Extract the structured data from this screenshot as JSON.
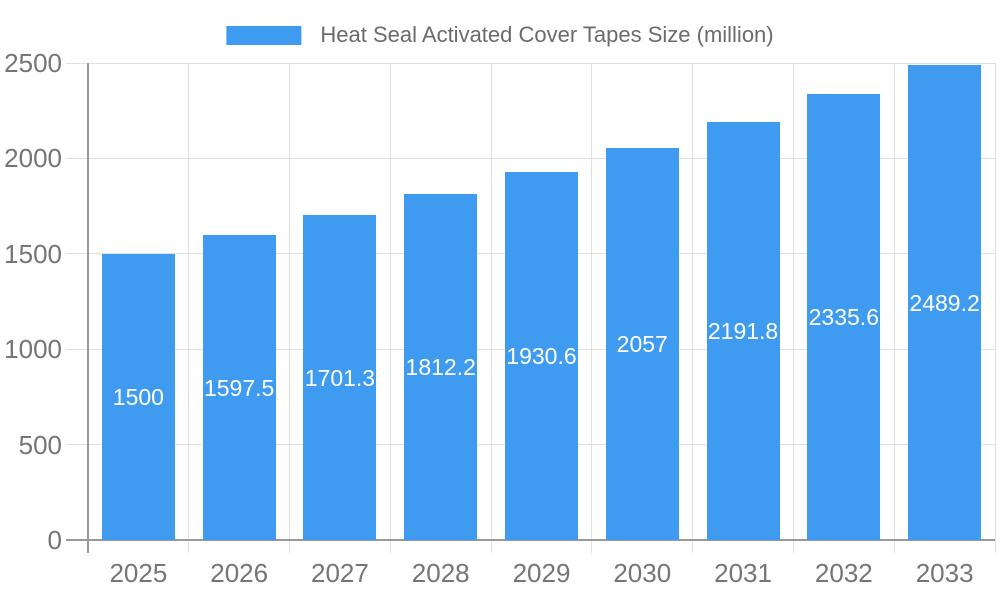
{
  "legend": {
    "series_label": "Heat Seal Activated Cover Tapes Size (million)",
    "swatch_color": "#3e9bf0"
  },
  "colors": {
    "bar_fill": "#3e9bf0",
    "bar_label_text": "#ffffff",
    "axis_line": "#999999",
    "grid_line": "#e0e0e0",
    "tick_label_text": "#757575",
    "legend_text": "#6b6b6b",
    "background": "#ffffff"
  },
  "chart_data": {
    "type": "bar",
    "title": "Heat Seal Activated Cover Tapes Size (million)",
    "categories": [
      "2025",
      "2026",
      "2027",
      "2028",
      "2029",
      "2030",
      "2031",
      "2032",
      "2033"
    ],
    "values": [
      1500,
      1597.5,
      1701.3,
      1812.2,
      1930.6,
      2057,
      2191.8,
      2335.6,
      2489.2
    ],
    "bar_value_labels": [
      "1500",
      "1597.5",
      "1701.3",
      "1812.2",
      "1930.6",
      "2057",
      "2191.8",
      "2335.6",
      "2489.2"
    ],
    "xlabel": "",
    "ylabel": "",
    "ylim": [
      0,
      2500
    ],
    "yticks": [
      0,
      500,
      1000,
      1500,
      2000,
      2500
    ],
    "grid": true,
    "legend_position": "top"
  }
}
